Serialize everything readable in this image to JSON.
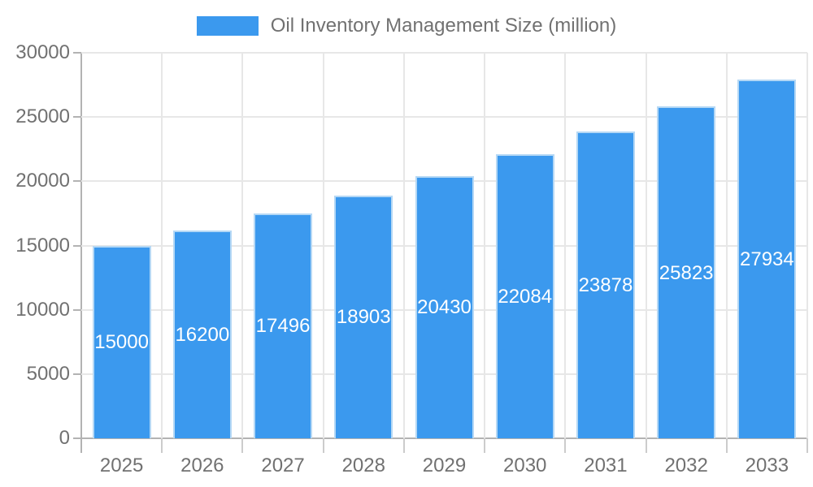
{
  "chart_data": {
    "type": "bar",
    "title": "",
    "legend_label": "Oil Inventory Management Size (million)",
    "legend_position": "top",
    "categories": [
      "2025",
      "2026",
      "2027",
      "2028",
      "2029",
      "2030",
      "2031",
      "2032",
      "2033"
    ],
    "series": [
      {
        "name": "Oil Inventory Management Size (million)",
        "values": [
          15000,
          16200,
          17496,
          18903,
          20430,
          22084,
          23878,
          25823,
          27934
        ]
      }
    ],
    "value_labels": [
      15000,
      16200,
      17496,
      18903,
      20430,
      22084,
      23878,
      25823,
      27934
    ],
    "value_label_position": "inside-center",
    "xlabel": "",
    "ylabel": "",
    "ylim": [
      0,
      30000
    ],
    "yticks": [
      0,
      5000,
      10000,
      15000,
      20000,
      25000,
      30000
    ],
    "grid": true,
    "colors": {
      "bar_fill": "#3b99ee",
      "bar_border": "#b5d8f5",
      "grid_line": "#e7e7e7",
      "axis_line": "#b3b3b3",
      "tick_line": "#cccccc",
      "tick_text": "#717171",
      "value_label_text": "#ffffff",
      "background": "#ffffff"
    }
  }
}
